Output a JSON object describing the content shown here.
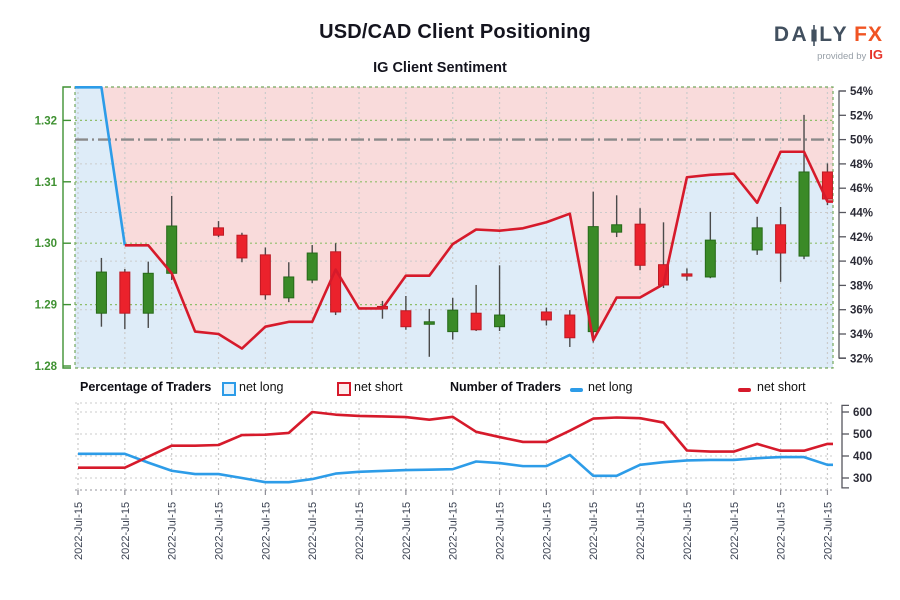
{
  "header": {
    "title": "USD/CAD Client Positioning",
    "subtitle": "IG Client Sentiment"
  },
  "logo": {
    "word_part1": "DA",
    "word_part2": "LY",
    "word_accent": "FX",
    "tagline": "provided by",
    "tagline_brand": "IG"
  },
  "legend": {
    "percentage_title": "Percentage of Traders",
    "number_title": "Number of Traders",
    "net_long": "net long",
    "net_short": "net short"
  },
  "colors": {
    "net_long": "#2d9ce8",
    "net_short": "#d61a2b",
    "candle_up": "#3a8a27",
    "candle_up_border": "#266919",
    "candle_down": "#eb222c",
    "candle_down_border": "#bd1a24",
    "wick": "#4a4a4a",
    "fill_above_line": "#f9dbdb",
    "fill_below_line": "#deecf8",
    "price_axis_text": "#3f9132",
    "pct_axis_text": "#2b2b36",
    "grid_green": "#8fbe6a",
    "grid_gray": "#cbcbcb",
    "border_green": "#74a85e",
    "fifty_line": "#8a8a8a",
    "date_text": "#3b4252",
    "axis_line": "#56565e"
  },
  "chart_data": [
    {
      "type": "candlestick",
      "title": "USD/CAD Client Positioning",
      "subtitle": "IG Client Sentiment",
      "price_axis": {
        "labels": [
          "1.32",
          "1.31",
          "1.30",
          "1.29",
          "1.28"
        ],
        "values": [
          1.32,
          1.31,
          1.3,
          1.29,
          1.28
        ]
      },
      "percent_axis": {
        "labels": [
          "54%",
          "52%",
          "50%",
          "48%",
          "46%",
          "44%",
          "42%",
          "40%",
          "38%",
          "36%",
          "34%",
          "32%"
        ],
        "values": [
          54,
          52,
          50,
          48,
          46,
          44,
          42,
          40,
          38,
          36,
          34,
          32
        ]
      },
      "fifty_pct_line": 50,
      "grid_pct_lines": [
        48,
        44,
        40,
        36
      ],
      "candles": [
        {
          "s": 1,
          "o": 1.2886,
          "h": 1.2976,
          "l": 1.2864,
          "c": 1.2953
        },
        {
          "s": 2,
          "o": 1.2953,
          "h": 1.2958,
          "l": 1.286,
          "c": 1.2886
        },
        {
          "s": 3,
          "o": 1.2886,
          "h": 1.297,
          "l": 1.2862,
          "c": 1.2951
        },
        {
          "s": 4,
          "o": 1.2951,
          "h": 1.3077,
          "l": 1.294,
          "c": 1.3028
        },
        {
          "s": 6,
          "o": 1.3025,
          "h": 1.3036,
          "l": 1.301,
          "c": 1.3013
        },
        {
          "s": 7,
          "o": 1.3013,
          "h": 1.3017,
          "l": 1.2969,
          "c": 1.2976
        },
        {
          "s": 8,
          "o": 1.2981,
          "h": 1.2993,
          "l": 1.2908,
          "c": 1.2916
        },
        {
          "s": 9,
          "o": 1.2911,
          "h": 1.2969,
          "l": 1.2904,
          "c": 1.2945
        },
        {
          "s": 10,
          "o": 1.294,
          "h": 1.2997,
          "l": 1.2935,
          "c": 1.2984
        },
        {
          "s": 11,
          "o": 1.2986,
          "h": 1.3,
          "l": 1.2883,
          "c": 1.2888
        },
        {
          "s": 13,
          "o": 1.2897,
          "h": 1.2906,
          "l": 1.2877,
          "c": 1.2893
        },
        {
          "s": 14,
          "o": 1.289,
          "h": 1.2914,
          "l": 1.2859,
          "c": 1.2864
        },
        {
          "s": 15,
          "o": 1.2868,
          "h": 1.2893,
          "l": 1.2815,
          "c": 1.2872
        },
        {
          "s": 16,
          "o": 1.2856,
          "h": 1.2911,
          "l": 1.2843,
          "c": 1.2891
        },
        {
          "s": 17,
          "o": 1.2886,
          "h": 1.2932,
          "l": 1.2857,
          "c": 1.2859
        },
        {
          "s": 18,
          "o": 1.2864,
          "h": 1.2964,
          "l": 1.2857,
          "c": 1.2883
        },
        {
          "s": 20,
          "o": 1.2888,
          "h": 1.2895,
          "l": 1.2866,
          "c": 1.2875
        },
        {
          "s": 21,
          "o": 1.2883,
          "h": 1.2891,
          "l": 1.2831,
          "c": 1.2846
        },
        {
          "s": 22,
          "o": 1.2856,
          "h": 1.3084,
          "l": 1.2838,
          "c": 1.3027
        },
        {
          "s": 23,
          "o": 1.3018,
          "h": 1.3078,
          "l": 1.301,
          "c": 1.303
        },
        {
          "s": 24,
          "o": 1.3031,
          "h": 1.3057,
          "l": 1.2956,
          "c": 1.2964
        },
        {
          "s": 25,
          "o": 1.2965,
          "h": 1.3034,
          "l": 1.2927,
          "c": 1.2932
        },
        {
          "s": 26,
          "o": 1.295,
          "h": 1.2959,
          "l": 1.2939,
          "c": 1.2947
        },
        {
          "s": 27,
          "o": 1.2945,
          "h": 1.3051,
          "l": 1.2943,
          "c": 1.3005
        },
        {
          "s": 29,
          "o": 1.2989,
          "h": 1.3043,
          "l": 1.2981,
          "c": 1.3025
        },
        {
          "s": 30,
          "o": 1.303,
          "h": 1.3059,
          "l": 1.2937,
          "c": 1.2984
        },
        {
          "s": 31,
          "o": 1.2979,
          "h": 1.3209,
          "l": 1.2974,
          "c": 1.3116
        },
        {
          "s": 32,
          "o": 1.3116,
          "h": 1.313,
          "l": 1.3062,
          "c": 1.3072
        }
      ],
      "sentiment_pct": {
        "note": "percent line; first segment net-long majority (blue), remainder net-short (red)",
        "blue_through_slot": 2,
        "values": [
          54.3,
          54.3,
          41.3,
          41.3,
          39.0,
          34.2,
          34.0,
          32.8,
          34.6,
          35.0,
          35.0,
          39.3,
          36.1,
          36.1,
          38.8,
          38.8,
          41.4,
          42.6,
          42.5,
          42.7,
          43.2,
          43.9,
          33.5,
          37.0,
          37.0,
          38.1,
          46.9,
          47.1,
          47.2,
          44.8,
          49.0,
          49.0,
          44.9
        ]
      }
    },
    {
      "type": "line",
      "title": "Number of Traders",
      "value_axis": {
        "labels": [
          "600",
          "500",
          "400",
          "300"
        ],
        "values": [
          600,
          500,
          400,
          300
        ]
      },
      "x_labels": [
        "2022-Jul-15",
        "2022-Jul-15",
        "2022-Jul-15",
        "2022-Jul-15",
        "2022-Jul-15",
        "2022-Jul-15",
        "2022-Jul-15",
        "2022-Jul-15",
        "2022-Jul-15",
        "2022-Jul-15",
        "2022-Jul-15",
        "2022-Jul-15",
        "2022-Jul-15",
        "2022-Jul-15",
        "2022-Jul-15",
        "2022-Jul-15",
        "2022-Jul-15"
      ],
      "series": [
        {
          "name": "net long",
          "color_key": "net_long",
          "values": [
            410,
            410,
            410,
            370,
            333,
            318,
            318,
            300,
            281,
            281,
            295,
            320,
            328,
            332,
            336,
            338,
            340,
            375,
            368,
            354,
            354,
            405,
            310,
            310,
            360,
            372,
            380,
            382,
            382,
            390,
            395,
            395,
            360
          ]
        },
        {
          "name": "net short",
          "color_key": "net_short",
          "values": [
            347,
            347,
            347,
            397,
            447,
            447,
            450,
            495,
            497,
            505,
            600,
            588,
            582,
            580,
            577,
            565,
            578,
            510,
            486,
            464,
            464,
            515,
            570,
            575,
            572,
            552,
            425,
            420,
            420,
            455,
            424,
            424,
            455
          ]
        }
      ]
    }
  ]
}
